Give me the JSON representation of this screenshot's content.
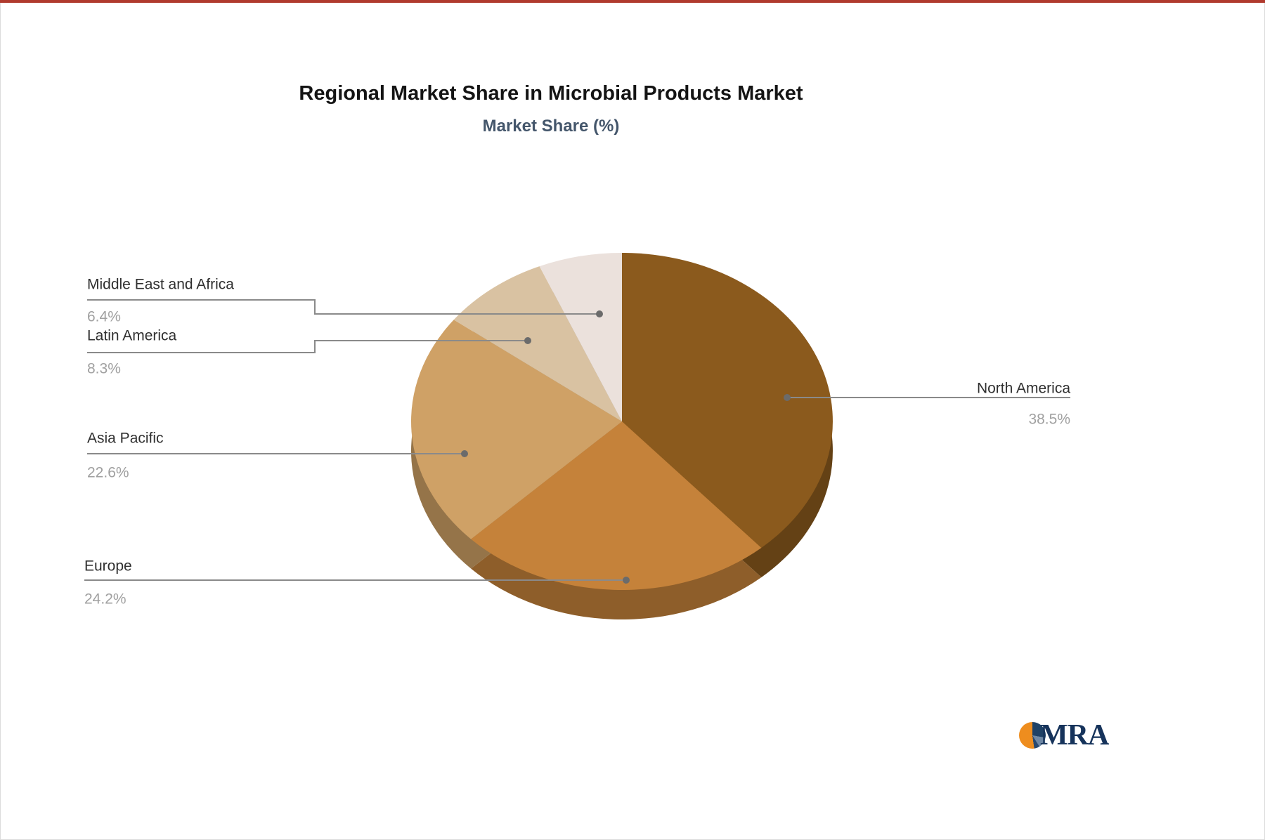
{
  "window": {
    "top_accent_color": "#b03a2e"
  },
  "title": "Regional Market Share in Microbial Products Market",
  "subtitle": "Market Share (%)",
  "chart_data": {
    "type": "pie",
    "style": "3d-pie",
    "title": "Regional Market Share in Microbial Products Market",
    "subtitle": "Market Share (%)",
    "unit": "%",
    "legend_position": "callout-labels",
    "start_angle_deg": 0,
    "direction": "clockwise",
    "slices": [
      {
        "label": "North America",
        "value": 38.5,
        "display": "38.5%",
        "color": "#8B5A1D"
      },
      {
        "label": "Europe",
        "value": 24.2,
        "display": "24.2%",
        "color": "#C5823A"
      },
      {
        "label": "Asia Pacific",
        "value": 22.6,
        "display": "22.6%",
        "color": "#CFA166"
      },
      {
        "label": "Latin America",
        "value": 8.3,
        "display": "8.3%",
        "color": "#D9C2A2"
      },
      {
        "label": "Middle East and Africa",
        "value": 6.4,
        "display": "6.4%",
        "color": "#EBE1DC"
      }
    ],
    "label_text_color": "#2f2f2f",
    "value_text_color": "#a0a0a0",
    "leader_line_color": "#8a8a8a",
    "leader_dot_color": "#6b6b6b"
  },
  "logo": {
    "text": "MRA",
    "icon_colors": {
      "orange": "#ee8d1e",
      "navy": "#1e4166",
      "steel_blue": "#6f88a5"
    },
    "text_color": "#16335b"
  }
}
